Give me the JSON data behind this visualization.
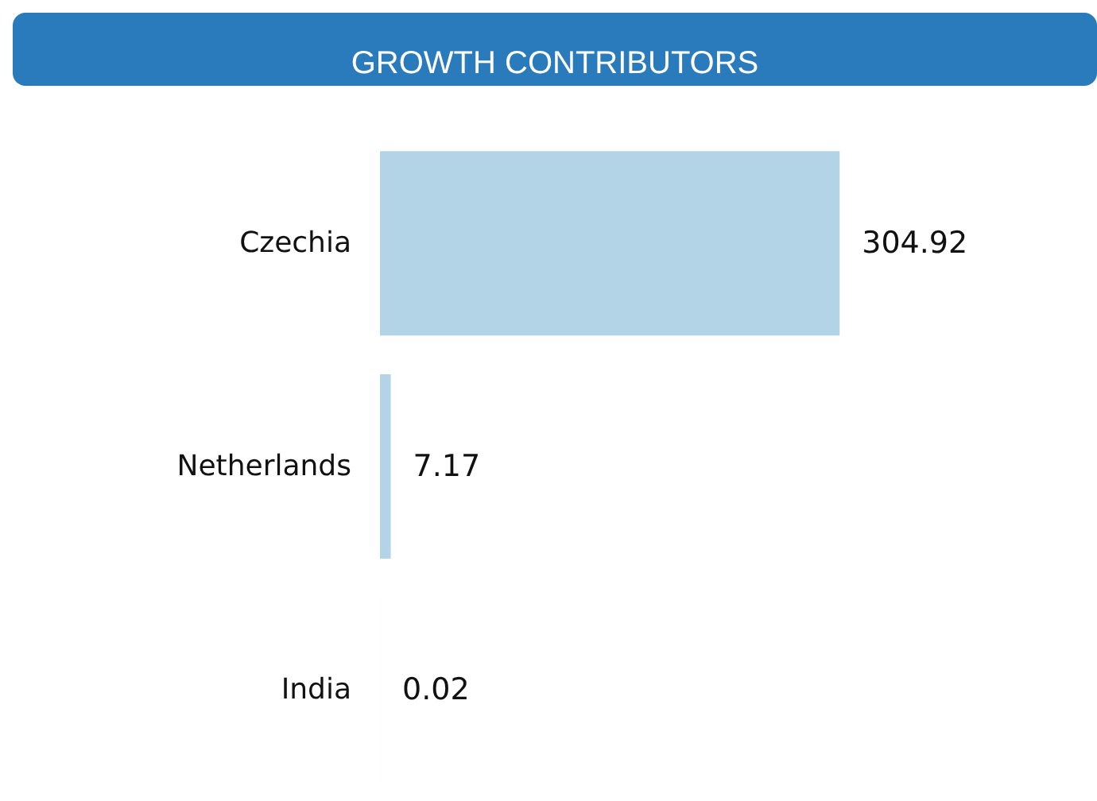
{
  "chart_data": {
    "type": "bar",
    "orientation": "horizontal",
    "title": "GROWTH CONTRIBUTORS",
    "categories": [
      "Czechia",
      "Netherlands",
      "India"
    ],
    "values": [
      304.92,
      7.17,
      0.02
    ],
    "color": "#b3d4e6",
    "data_labels": true
  }
}
